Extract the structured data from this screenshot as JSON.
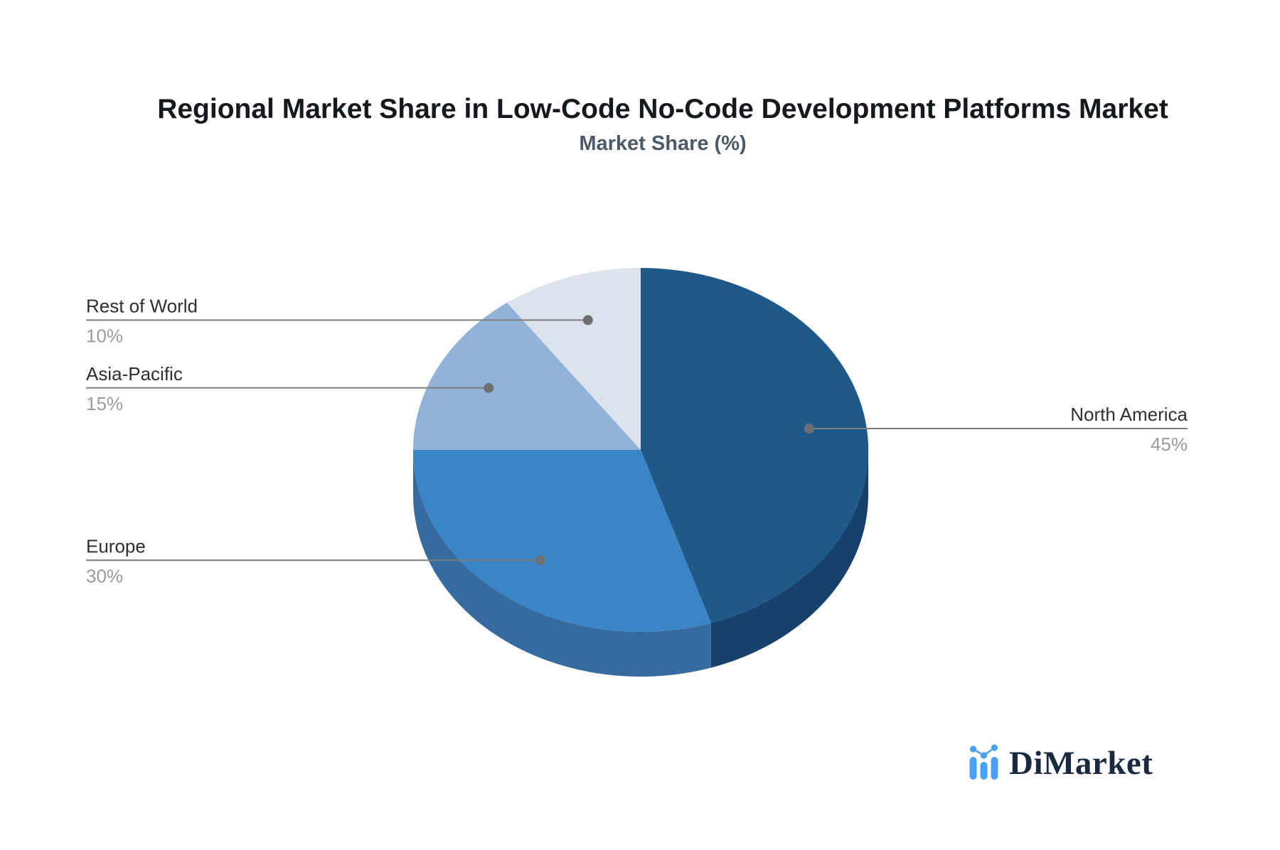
{
  "header": {
    "title": "Regional Market Share in Low-Code No-Code Development Platforms Market",
    "subtitle": "Market Share (%)"
  },
  "chart_data": {
    "type": "pie",
    "title": "Regional Market Share in Low-Code No-Code Development Platforms Market",
    "subtitle": "Market Share (%)",
    "unit": "%",
    "categories": [
      "North America",
      "Europe",
      "Asia-Pacific",
      "Rest of World"
    ],
    "values": [
      45,
      30,
      15,
      10
    ],
    "display_values": [
      "45%",
      "30%",
      "15%",
      "10%"
    ],
    "style": "3d-pie",
    "start_position": "12-oclock",
    "direction": "clockwise",
    "legend_position": "callout-labels",
    "slice_colors": [
      "#1e598a",
      "#3b85c7",
      "#90b3d7",
      "#dce3ed"
    ],
    "slice_side_colors": [
      "#17406b",
      "#356b9e",
      "#6e93b8",
      "#b6c1d1"
    ],
    "leader_line_color": "#7c7e80",
    "leader_dot_color": "#6d6f71",
    "label_color": "#2f2f2f",
    "value_color": "#9b9b9b"
  },
  "branding": {
    "logo_text": "DiMarket",
    "logo_icon": "bar-line-chart-icon",
    "logo_text_color": "#192940",
    "logo_icon_color": "#49a0f5"
  }
}
